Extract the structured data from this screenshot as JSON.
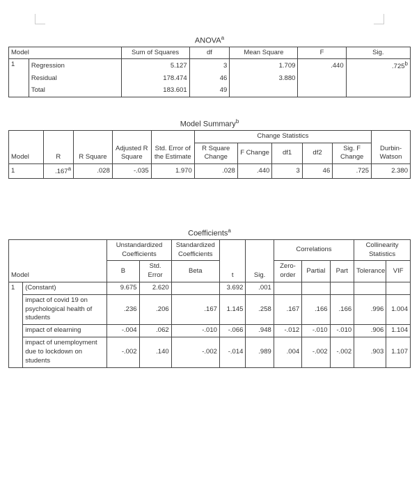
{
  "anova": {
    "title": "ANOVA",
    "sup": "a",
    "headers": [
      "Model",
      "Sum of Squares",
      "df",
      "Mean Square",
      "F",
      "Sig."
    ],
    "model_no": "1",
    "rows": [
      {
        "label": "Regression",
        "ss": "5.127",
        "df": "3",
        "ms": "1.709",
        "f": ".440",
        "sig": ".725",
        "sig_sup": "b"
      },
      {
        "label": "Residual",
        "ss": "178.474",
        "df": "46",
        "ms": "3.880",
        "f": "",
        "sig": ""
      },
      {
        "label": "Total",
        "ss": "183.601",
        "df": "49",
        "ms": "",
        "f": "",
        "sig": ""
      }
    ]
  },
  "msum": {
    "title": "Model Summary",
    "sup": "b",
    "group_header": "Change Statistics",
    "headers": {
      "model": "Model",
      "r": "R",
      "rsq": "R Square",
      "arsq": "Adjusted R Square",
      "se": "Std. Error of the Estimate",
      "rsqc": "R Square Change",
      "fc": "F Change",
      "df1": "df1",
      "df2": "df2",
      "sigfc": "Sig. F Change",
      "dw": "Durbin-Watson"
    },
    "row": {
      "model": "1",
      "r": ".167",
      "r_sup": "a",
      "rsq": ".028",
      "arsq": "-.035",
      "se": "1.970",
      "rsqc": ".028",
      "fc": ".440",
      "df1": "3",
      "df2": "46",
      "sigfc": ".725",
      "dw": "2.380"
    }
  },
  "coef": {
    "title": "Coefficients",
    "sup": "a",
    "group_headers": {
      "unstd": "Unstandardized Coefficients",
      "std": "Standardized Coefficients",
      "corr": "Correlations",
      "coll": "Collinearity Statistics"
    },
    "headers": {
      "model": "Model",
      "b": "B",
      "se": "Std. Error",
      "beta": "Beta",
      "t": "t",
      "sig": "Sig.",
      "zo": "Zero-order",
      "partial": "Partial",
      "part": "Part",
      "tol": "Tolerance",
      "vif": "VIF"
    },
    "model_no": "1",
    "rows": [
      {
        "label": "(Constant)",
        "b": "9.675",
        "se": "2.620",
        "beta": "",
        "t": "3.692",
        "sig": ".001",
        "zo": "",
        "partial": "",
        "part": "",
        "tol": "",
        "vif": ""
      },
      {
        "label": "impact of covid 19 on psychological health of students",
        "b": ".236",
        "se": ".206",
        "beta": ".167",
        "t": "1.145",
        "sig": ".258",
        "zo": ".167",
        "partial": ".166",
        "part": ".166",
        "tol": ".996",
        "vif": "1.004"
      },
      {
        "label": "impact of elearning",
        "b": "-.004",
        "se": ".062",
        "beta": "-.010",
        "t": "-.066",
        "sig": ".948",
        "zo": "-.012",
        "partial": "-.010",
        "part": "-.010",
        "tol": ".906",
        "vif": "1.104"
      },
      {
        "label": "impact of unemployment due to lockdown on students",
        "b": "-.002",
        "se": ".140",
        "beta": "-.002",
        "t": "-.014",
        "sig": ".989",
        "zo": ".004",
        "partial": "-.002",
        "part": "-.002",
        "tol": ".903",
        "vif": "1.107"
      }
    ]
  }
}
